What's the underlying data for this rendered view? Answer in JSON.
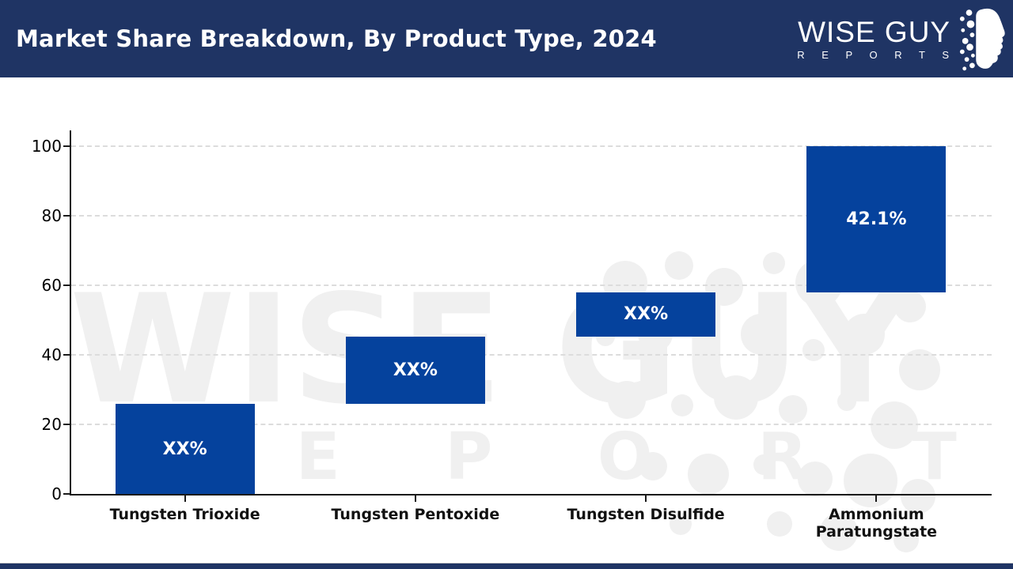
{
  "header": {
    "title": "Market Share Breakdown, By Product Type, 2024",
    "logo": {
      "wordmark": "WISE GUY",
      "tagline": "R E P O R T S"
    }
  },
  "watermark": {
    "wordmark": "WISE GUY",
    "tagline": "R E P O R T S"
  },
  "colors": {
    "header_bg": "#1f3464",
    "footer_bg": "#1f3464",
    "bar": "#05429d",
    "bar_label": "#ffffff",
    "grid": "#dcdcdc",
    "axis": "#1a1a1a",
    "tick_label": "#000000",
    "watermark": "#f0f0f0"
  },
  "chart_data": {
    "type": "bar",
    "subtype": "waterfall",
    "title": "Market Share Breakdown, By Product Type, 2024",
    "categories": [
      "Tungsten Trioxide",
      "Tungsten Pentoxide",
      "Tungsten Disulfide",
      "Ammonium\nParatungstate"
    ],
    "segments": [
      {
        "category": "Tungsten Trioxide",
        "start": 0,
        "end": 25.8,
        "value": 25.8,
        "value_label": "XX%"
      },
      {
        "category": "Tungsten Pentoxide",
        "start": 25.8,
        "end": 45.3,
        "value": 19.5,
        "value_label": "XX%"
      },
      {
        "category": "Tungsten Disulfide",
        "start": 45.3,
        "end": 57.9,
        "value": 12.6,
        "value_label": "XX%"
      },
      {
        "category": "Ammonium Paratungstate",
        "start": 57.9,
        "end": 100,
        "value": 42.1,
        "value_label": "42.1%"
      }
    ],
    "yticks": [
      0,
      20,
      40,
      60,
      80,
      100
    ],
    "ylim": [
      0,
      105
    ],
    "xlabel": "",
    "ylabel": "",
    "grid": "horizontal-dashed",
    "legend": "none"
  }
}
